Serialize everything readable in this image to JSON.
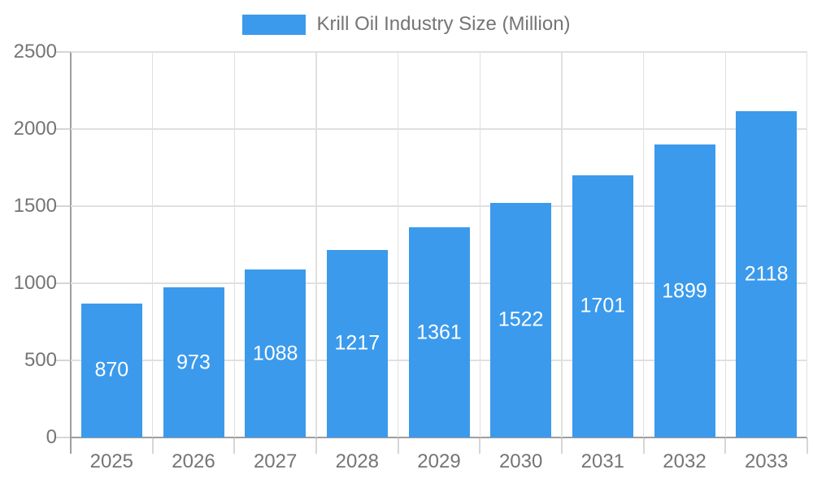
{
  "chart_data": {
    "type": "bar",
    "categories": [
      "2025",
      "2026",
      "2027",
      "2028",
      "2029",
      "2030",
      "2031",
      "2032",
      "2033"
    ],
    "series": [
      {
        "name": "Krill Oil Industry Size (Million)",
        "values": [
          870,
          973,
          1088,
          1217,
          1361,
          1522,
          1701,
          1899,
          2118
        ]
      }
    ],
    "xlabel": "",
    "ylabel": "",
    "ylim": [
      0,
      2500
    ],
    "yticks": [
      0,
      500,
      1000,
      1500,
      2000,
      2500
    ],
    "grid": "both",
    "legend_position": "top",
    "bar_labels_visible": true,
    "colors": {
      "bar": "#3b9aec",
      "bar_label_text": "#ffffff",
      "axis_text": "#757575",
      "axis_line": "#9e9e9e",
      "gridline": "#e0e0e0",
      "tick": "#d6d6d6",
      "background": "#ffffff"
    }
  }
}
